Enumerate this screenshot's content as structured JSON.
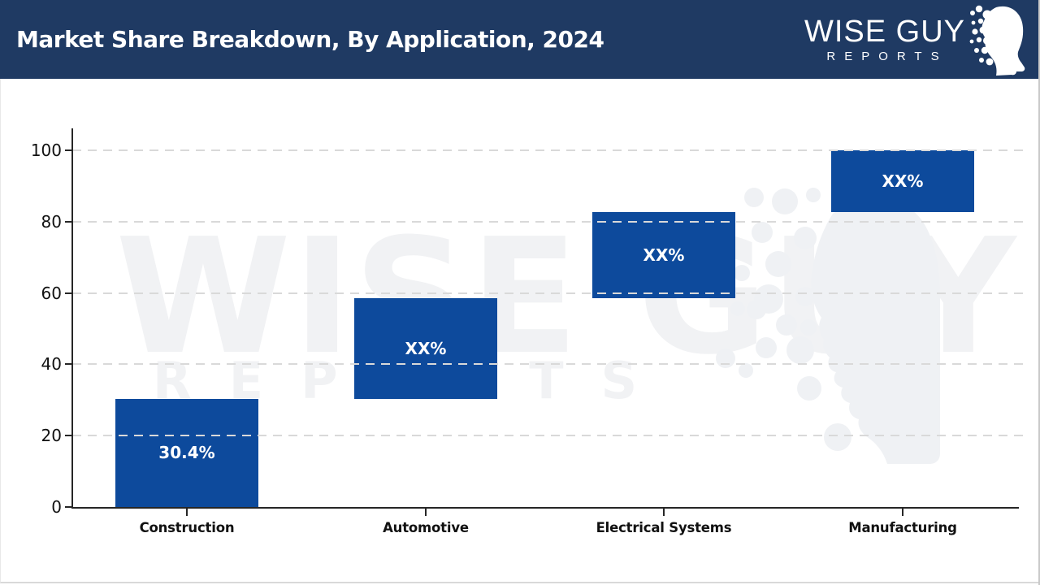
{
  "header": {
    "title": "Market Share Breakdown, By Application, 2024",
    "bg_color": "#1f3a63",
    "logo": {
      "name": "WISE GUY",
      "subtitle": "REPORTS"
    }
  },
  "watermark": {
    "line1": "WISE GUY",
    "line2": "REPORTS"
  },
  "chart_data": {
    "type": "bar",
    "subtype": "waterfall",
    "title": "Market Share Breakdown, By Application, 2024",
    "xlabel": "",
    "ylabel": "",
    "categories": [
      "Construction",
      "Automotive",
      "Electrical Systems",
      "Manufacturing"
    ],
    "segments": [
      {
        "category": "Construction",
        "start": 0,
        "end": 30.4,
        "label": "30.4%"
      },
      {
        "category": "Automotive",
        "start": 30.4,
        "end": 58.6,
        "label": "XX%"
      },
      {
        "category": "Electrical Systems",
        "start": 58.6,
        "end": 82.7,
        "label": "XX%"
      },
      {
        "category": "Manufacturing",
        "start": 82.7,
        "end": 100,
        "label": "XX%"
      }
    ],
    "yticks": [
      0,
      20,
      40,
      60,
      80,
      100
    ],
    "ylim": [
      0,
      106
    ],
    "bar_color": "#0d4a9c",
    "bar_label_color": "#ffffff",
    "axis_color": "#262626",
    "grid": {
      "on": true,
      "style": "dashed",
      "color": "#d9d9d9",
      "position": "above-bars"
    },
    "legend": "none"
  }
}
